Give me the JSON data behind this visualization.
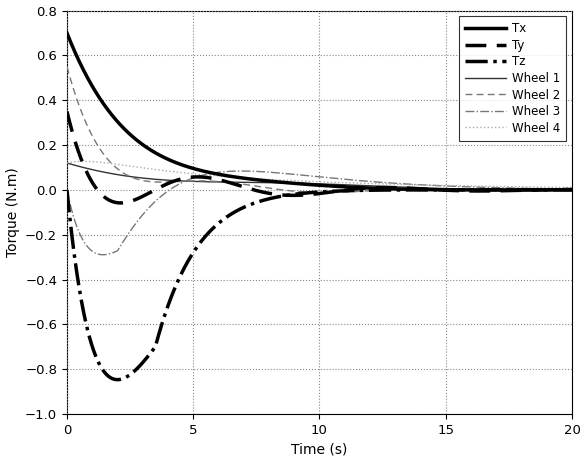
{
  "title": "",
  "xlabel": "Time (s)",
  "ylabel": "Torque (N.m)",
  "xlim": [
    0,
    20
  ],
  "ylim": [
    -1,
    0.8
  ],
  "yticks": [
    -1.0,
    -0.8,
    -0.6,
    -0.4,
    -0.2,
    0.0,
    0.2,
    0.4,
    0.6,
    0.8
  ],
  "xticks": [
    0,
    5,
    10,
    15,
    20
  ],
  "background_color": "#ffffff",
  "grid_color": "#888888",
  "legend_labels": [
    "Tx",
    "Ty",
    "Tz",
    "Wheel 1",
    "Wheel 2",
    "Wheel 3",
    "Wheel 4"
  ],
  "figsize": [
    5.86,
    4.62
  ],
  "dpi": 100
}
